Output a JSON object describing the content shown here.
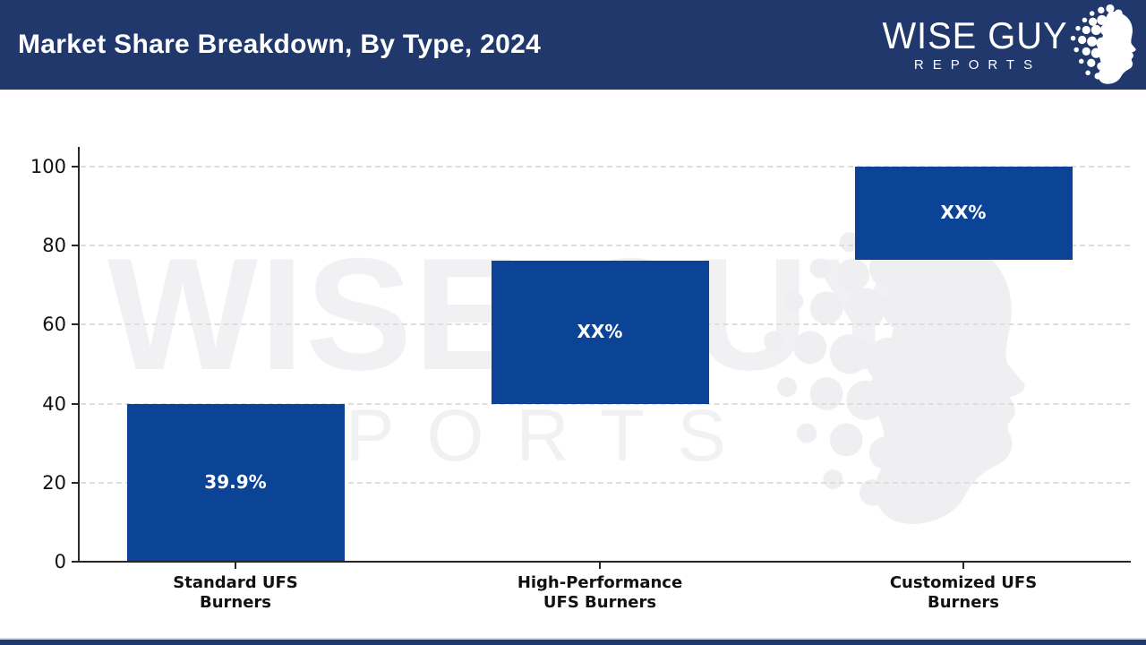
{
  "header": {
    "title": "Market Share Breakdown, By Type, 2024",
    "logo": {
      "line1": "WISE GUY",
      "line2": "REPORTS"
    }
  },
  "watermark": {
    "line1": "WISE GUY",
    "line2": "REPORTS"
  },
  "chart_data": {
    "type": "bar",
    "subtype": "waterfall",
    "title": "Market Share Breakdown, By Type, 2024",
    "categories": [
      "Standard UFS Burners",
      "High-Performance UFS Burners",
      "Customized UFS Burners"
    ],
    "x_tick_labels_lines": [
      [
        "Standard UFS",
        "Burners"
      ],
      [
        "High-Performance",
        "UFS Burners"
      ],
      [
        "Customized UFS",
        "Burners"
      ]
    ],
    "series": [
      {
        "name": "Market Share (%)",
        "segments": [
          {
            "category": "Standard UFS Burners",
            "start": 0,
            "end": 39.9,
            "label": "39.9%"
          },
          {
            "category": "High-Performance UFS Burners",
            "start": 40,
            "end": 76.2,
            "label": "XX%"
          },
          {
            "category": "Customized UFS Burners",
            "start": 76.4,
            "end": 100,
            "label": "XX%"
          }
        ]
      }
    ],
    "ylim": [
      0,
      105
    ],
    "yticks": [
      0,
      20,
      40,
      60,
      80,
      100
    ],
    "gridline_values": [
      20,
      40,
      60,
      80,
      100
    ],
    "grid": true,
    "legend": false,
    "xlabel": "",
    "ylabel": ""
  },
  "colors": {
    "header_bg": "#20386B",
    "bar_fill": "#0B4396",
    "bar_label": "#ffffff",
    "gridline": "#dedede",
    "axis": "#262626",
    "tick_text": "#111111",
    "watermark": "#f1f1f4",
    "footer_bar": "#20386B"
  },
  "icons": {
    "logo_face": "wise-guy-face-profile-dots"
  }
}
